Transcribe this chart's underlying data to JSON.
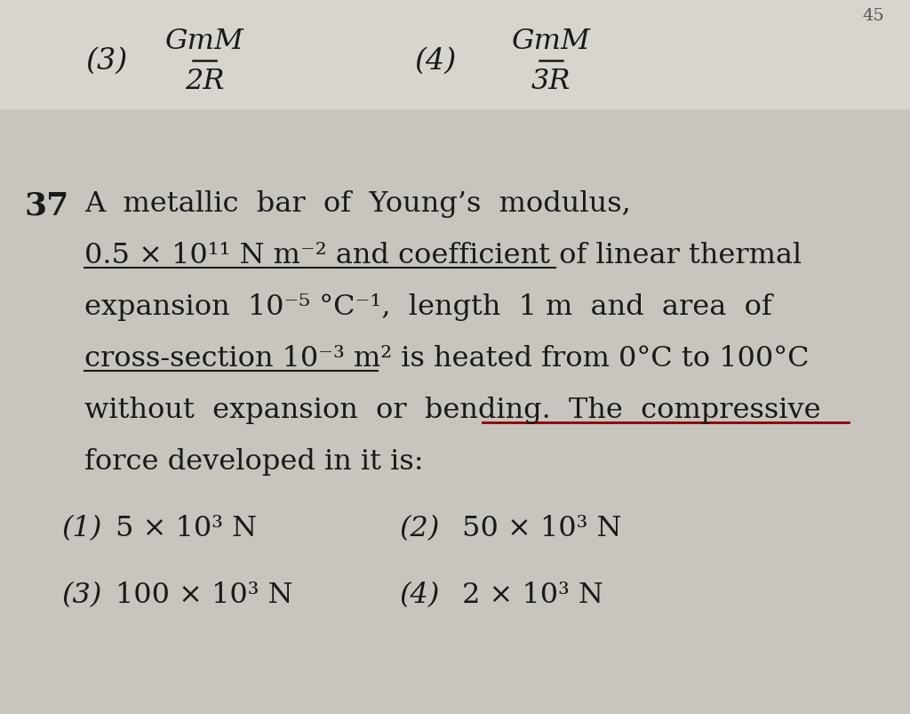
{
  "page_bg": "#c8c5be",
  "text_color": "#1a1a1a",
  "fig_width": 10.24,
  "fig_height": 8.04,
  "top_section": {
    "option3_label": "(3)",
    "option3_numerator": "GmM",
    "option3_denominator": "2R",
    "option4_label": "(4)",
    "option4_numerator": "GmM",
    "option4_denominator": "3R"
  },
  "question_number": "37",
  "options": [
    {
      "label": "(1)",
      "text": "5 × 10³ N"
    },
    {
      "label": "(2)",
      "text": "50 × 10³ N"
    },
    {
      "label": "(3)",
      "text": "100 × 10³ N"
    },
    {
      "label": "(4)",
      "text": "2 × 10³ N"
    }
  ]
}
